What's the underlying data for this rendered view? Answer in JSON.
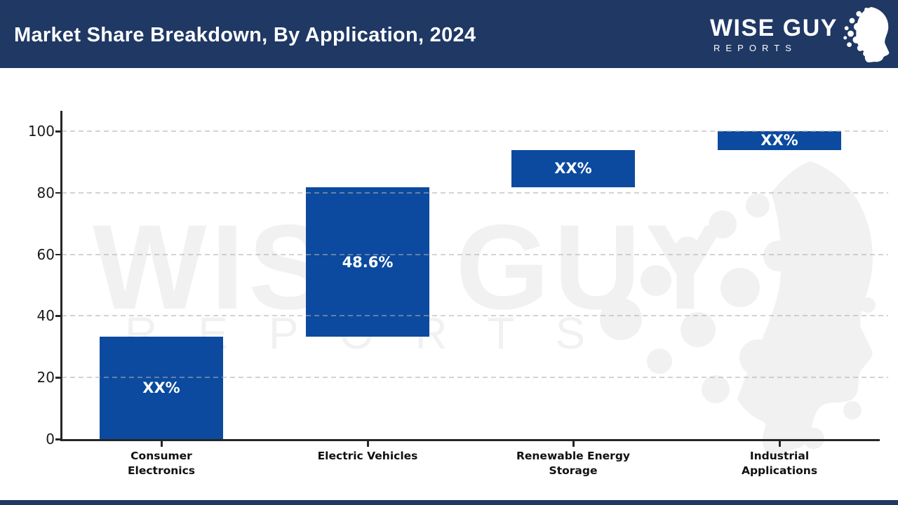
{
  "header": {
    "title": "Market Share Breakdown, By Application, 2024",
    "logo": {
      "line1": "WISE GUY",
      "line2": "REPORTS"
    }
  },
  "watermark": {
    "line1": "WISE GUY",
    "line2": "REPORTS"
  },
  "colors": {
    "header_bg": "#1f3864",
    "bar_blue": "#0b4a9e",
    "watermark_gray": "#f1f1f1",
    "value_label": "#ffffff"
  },
  "chart_data": {
    "type": "bar",
    "subtype": "waterfall-style stacked market share breakdown",
    "title": "Market Share Breakdown, By Application, 2024",
    "categories": [
      [
        "Consumer",
        "Electronics"
      ],
      [
        "Electric Vehicles"
      ],
      [
        "Renewable Energy",
        "Storage"
      ],
      [
        "Industrial",
        "Applications"
      ]
    ],
    "segments": [
      {
        "category": "Consumer Electronics",
        "start": 0,
        "end": 33.2,
        "value_label": "XX%"
      },
      {
        "category": "Electric Vehicles",
        "start": 33.2,
        "end": 81.8,
        "value_label": "48.6%"
      },
      {
        "category": "Renewable Energy Storage",
        "start": 81.8,
        "end": 93.9,
        "value_label": "XX%"
      },
      {
        "category": "Industrial Applications",
        "start": 93.9,
        "end": 100,
        "value_label": "XX%"
      }
    ],
    "ylim": [
      0,
      100
    ],
    "yticks": [
      0,
      20,
      40,
      60,
      80,
      100
    ],
    "grid": "horizontal dashed, drawn over bars",
    "legend": "none"
  }
}
